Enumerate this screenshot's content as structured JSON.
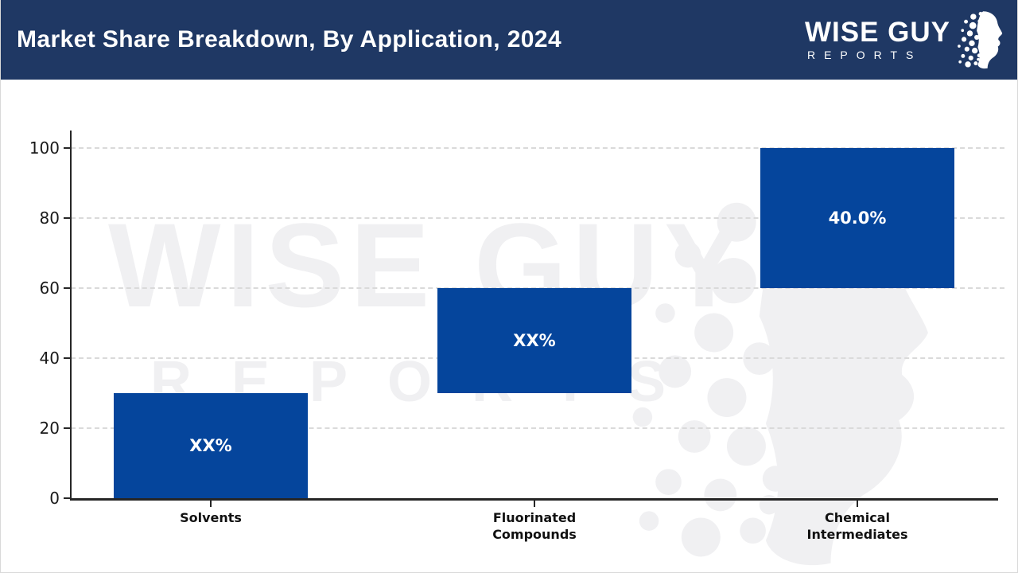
{
  "header": {
    "title": "Market Share Breakdown, By Application, 2024",
    "logo": {
      "line1": "WISE GUY",
      "line2": "REPORTS"
    }
  },
  "watermark": {
    "line1": "WISE GUY",
    "line2": "REPORTS"
  },
  "chart_data": {
    "type": "bar",
    "variant": "waterfall",
    "title": "Market Share Breakdown, By Application, 2024",
    "categories": [
      "Solvents",
      "Fluorinated Compounds",
      "Chemical Intermediates"
    ],
    "category_display": [
      "Solvents",
      "Fluorinated\nCompounds",
      "Chemical\nIntermediates"
    ],
    "values": [
      30,
      30,
      40
    ],
    "segments": [
      {
        "category": "Solvents",
        "start": 0,
        "end": 30,
        "label": "XX%"
      },
      {
        "category": "Fluorinated Compounds",
        "start": 30,
        "end": 60,
        "label": "XX%"
      },
      {
        "category": "Chemical Intermediates",
        "start": 60,
        "end": 100,
        "label": "40.0%"
      }
    ],
    "yticks": [
      0,
      20,
      40,
      60,
      80,
      100
    ],
    "ylim": [
      0,
      105
    ],
    "xlabel": "",
    "ylabel": "",
    "grid": "horizontal-dashed",
    "legend": "none",
    "colors": {
      "bar": "#05459c",
      "bar_label": "#ffffff",
      "header_bg": "#1f3864",
      "axis": "#262626",
      "gridline": "#dadada",
      "tick_label": "#1a1a1a",
      "watermark": "#f0f0f2"
    }
  }
}
